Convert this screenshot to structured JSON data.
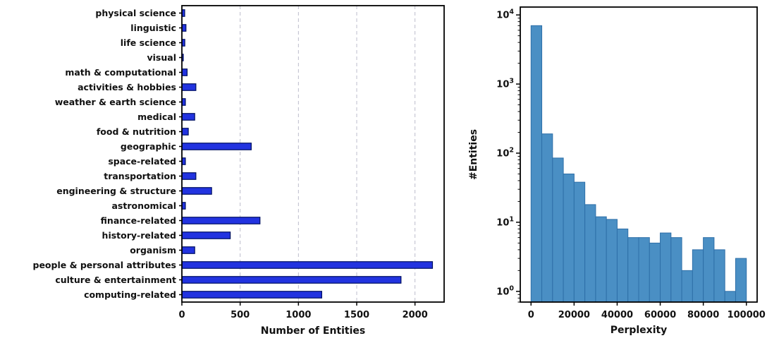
{
  "figure": {
    "background": "#ffffff"
  },
  "chart_data": [
    {
      "type": "bar",
      "orientation": "horizontal",
      "title": "",
      "xlabel": "Number of Entities",
      "ylabel": "",
      "categories": [
        "physical science",
        "linguistic",
        "life science",
        "visual",
        "math & computational",
        "activities & hobbies",
        "weather & earth science",
        "medical",
        "food & nutrition",
        "geographic",
        "space-related",
        "transportation",
        "engineering & structure",
        "astronomical",
        "finance-related",
        "history-related",
        "organism",
        "people & personal attributes",
        "culture & entertainment",
        "computing-related"
      ],
      "values": [
        24,
        35,
        25,
        12,
        45,
        120,
        30,
        110,
        55,
        595,
        30,
        120,
        255,
        30,
        670,
        415,
        110,
        2150,
        1880,
        1200
      ],
      "xlim": [
        0,
        2250
      ],
      "xticks": [
        0,
        500,
        1000,
        1500,
        2000
      ],
      "grid": "vertical-dashed",
      "grid_color": "#bcbccc",
      "bar_color": "#2233e0",
      "bar_edge_color": "#001060",
      "legend": "none"
    },
    {
      "type": "histogram",
      "title": "",
      "xlabel": "Perplexity",
      "ylabel": "#Entities",
      "yscale": "log",
      "bin_start": 0,
      "bin_width": 5000,
      "bin_edges": [
        0,
        5000,
        10000,
        15000,
        20000,
        25000,
        30000,
        35000,
        40000,
        45000,
        50000,
        55000,
        60000,
        65000,
        70000,
        75000,
        80000,
        85000,
        90000,
        95000,
        100000
      ],
      "counts": [
        7000,
        190,
        85,
        50,
        38,
        18,
        12,
        11,
        8,
        6,
        6,
        5,
        7,
        6,
        2,
        4,
        6,
        4,
        1,
        3
      ],
      "xlim": [
        -5000,
        105000
      ],
      "xticks": [
        0,
        20000,
        40000,
        60000,
        80000,
        100000
      ],
      "ytick_labels": [
        "10^0",
        "10^1",
        "10^2",
        "10^3",
        "10^4"
      ],
      "ytick_exponents": [
        0,
        1,
        2,
        3,
        4
      ],
      "ylim_log": [
        -0.155,
        4.114
      ],
      "grid": "off",
      "bar_color": "#4a8fc4",
      "bar_edge_color": "#2e6fa8",
      "legend": "none"
    }
  ]
}
